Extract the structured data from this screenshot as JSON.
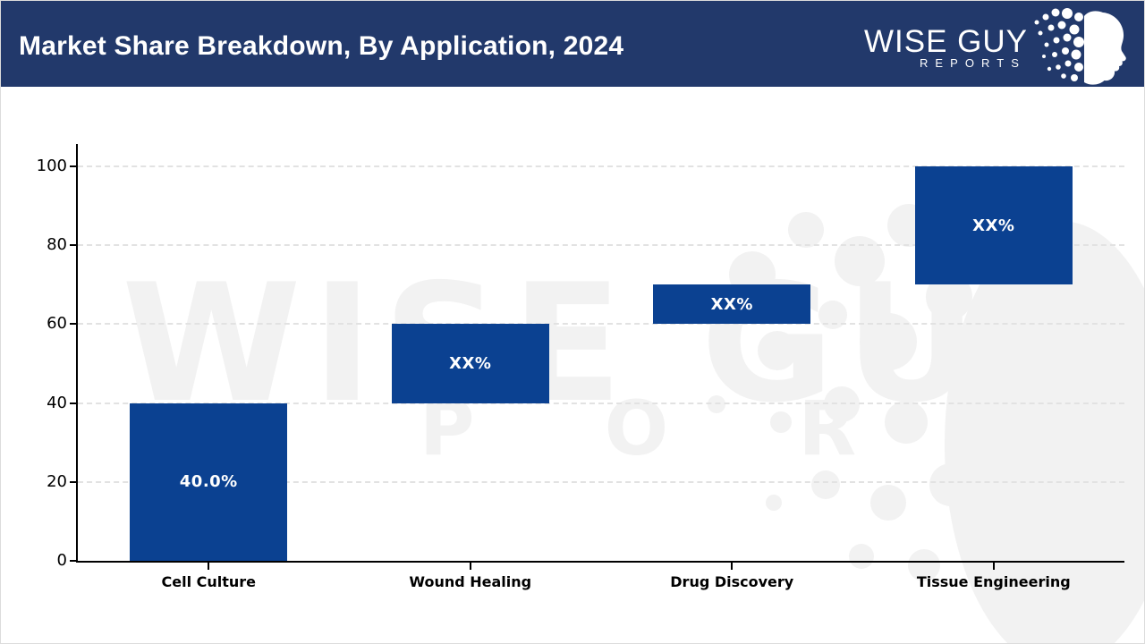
{
  "header": {
    "title": "Market Share Breakdown, By Application, 2024",
    "bg_color": "#22396B",
    "logo": {
      "name": "WISE GUY",
      "sub": "REPORTS"
    }
  },
  "watermark": {
    "line1": "WISE GUY",
    "line2": "P O R T S"
  },
  "chart_data": {
    "type": "bar",
    "subtype": "waterfall",
    "title": "Market Share Breakdown, By Application, 2024",
    "categories": [
      "Cell Culture",
      "Wound Healing",
      "Drug Discovery",
      "Tissue Engineering"
    ],
    "series": [
      {
        "name": "Market Share (%)",
        "segments": [
          {
            "category": "Cell Culture",
            "start": 0,
            "end": 40,
            "value": 40.0,
            "label": "40.0%"
          },
          {
            "category": "Wound Healing",
            "start": 40,
            "end": 60,
            "value": 20,
            "label": "XX%"
          },
          {
            "category": "Drug Discovery",
            "start": 60,
            "end": 70,
            "value": 10,
            "label": "XX%"
          },
          {
            "category": "Tissue Engineering",
            "start": 70,
            "end": 100,
            "value": 30,
            "label": "XX%"
          }
        ]
      }
    ],
    "xlabel": "",
    "ylabel": "",
    "ylim": [
      0,
      105
    ],
    "yticks": [
      0,
      20,
      40,
      60,
      80,
      100
    ],
    "grid": "horizontal-dashed",
    "legend": "none",
    "bar_color": "#0B4191",
    "bar_label_color": "#ffffff",
    "axis_color": "#000000",
    "gridline_color": "#e2e2e2"
  }
}
